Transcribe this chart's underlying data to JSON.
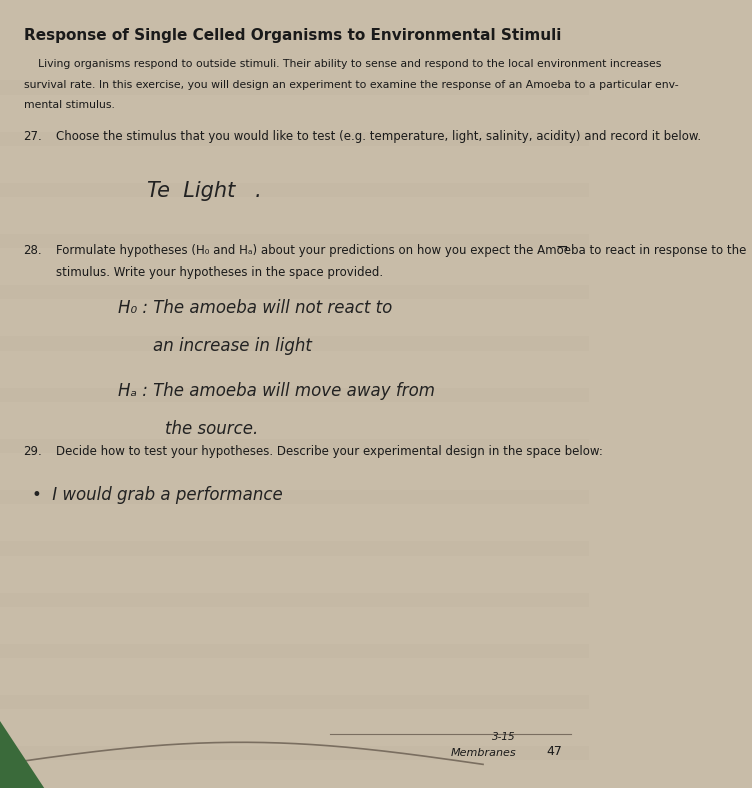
{
  "title": "Response of Single Celled Organisms to Environmental Stimuli",
  "intro_line1": "    Living organisms respond to outside stimuli. Their ability to sense and respond to the local environment increases",
  "intro_line2": "survival rate. In this exercise, you will design an experiment to examine the response of an Amoeba to a particular env-",
  "intro_line3": "mental stimulus.",
  "q27_label": "27.",
  "q27_text": "Choose the stimulus that you would like to test (e.g. temperature, light, salinity, acidity) and record it below.",
  "q27_answer": "Te  Light   .",
  "q28_label": "28.",
  "q28_text1": "Formulate hypotheses (H₀ and Hₐ) about your predictions on how you expect the Amoeba to react in response to the",
  "q28_text2": "stimulus. Write your hypotheses in the space provided.",
  "q28_h0_line1": "H₀ : The amoeba will not react to",
  "q28_h0_line2": "an increase in light",
  "q28_ha_line1": "Hₐ : The amoeba will move away from",
  "q28_ha_line2": "the source.",
  "q29_label": "29.",
  "q29_text": "Decide how to test your hypotheses. Describe your experimental design in the space below:",
  "q29_answer": "•  I would grab a performance",
  "footer_section": "3-15",
  "footer_center": "Membranes",
  "footer_page": "47",
  "bg_color": "#c8bca8",
  "paper_color": "#ddd5c2",
  "text_color": "#1a1a1a",
  "handwriting_color": "#222222"
}
